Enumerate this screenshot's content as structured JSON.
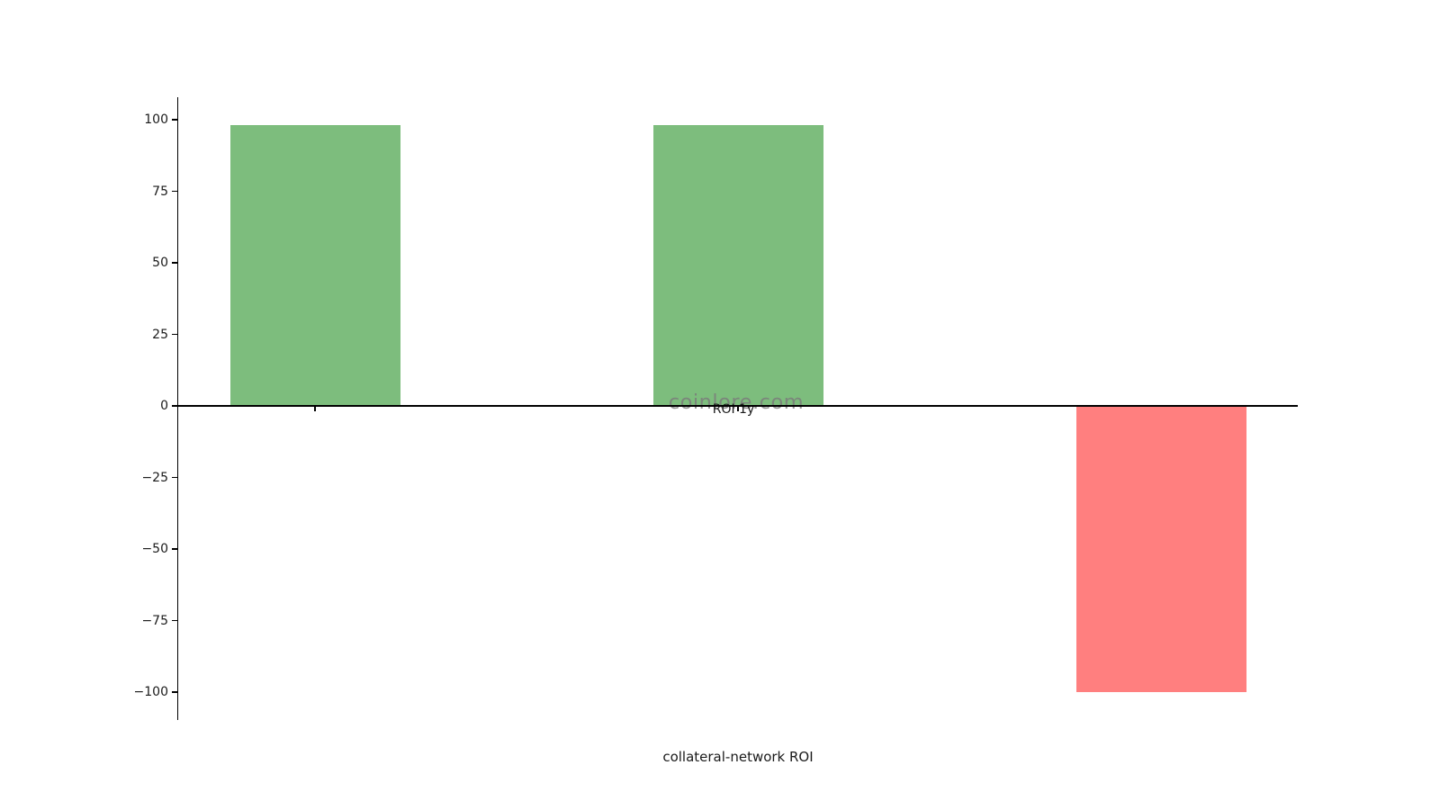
{
  "watermark": "coinlore.com",
  "chart_data": {
    "type": "bar",
    "title": "collateral-network ROI",
    "xlabel": "",
    "ylabel": "",
    "categories": [
      "",
      "ROI 1y",
      ""
    ],
    "values": [
      98,
      98,
      -100
    ],
    "bar_colors": [
      "#7dbd7d",
      "#7dbd7d",
      "#ff7f7f"
    ],
    "yticks": [
      100,
      75,
      50,
      25,
      0,
      -25,
      -50,
      -75,
      -100
    ],
    "ylim": [
      -110,
      108
    ],
    "grid": false,
    "legend_position": "none",
    "colors": {
      "positive": "#7dbd7d",
      "negative": "#ff7f7f",
      "axis": "#000000",
      "text": "#1a1a1a",
      "watermark": "#7b7b7b",
      "background": "#ffffff"
    }
  }
}
